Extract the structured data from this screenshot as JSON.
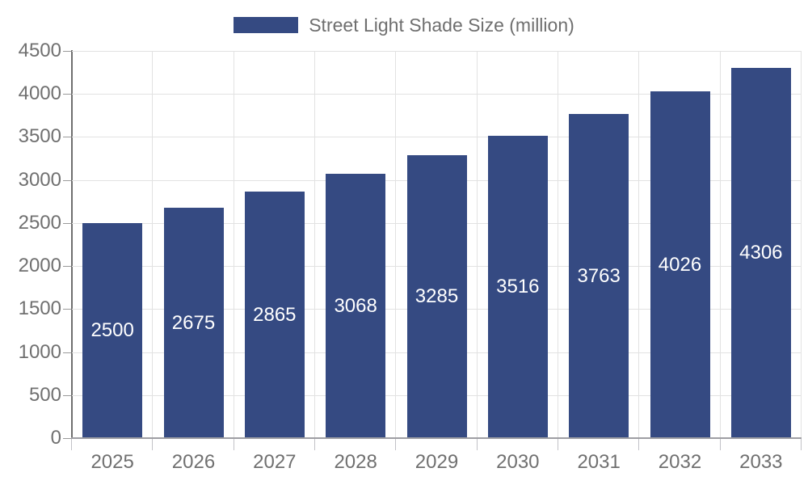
{
  "chart_data": {
    "type": "bar",
    "title": "Street Light Shade Size (million)",
    "categories": [
      "2025",
      "2026",
      "2027",
      "2028",
      "2029",
      "2030",
      "2031",
      "2032",
      "2033"
    ],
    "values": [
      2500,
      2675,
      2865,
      3068,
      3285,
      3516,
      3763,
      4026,
      4306
    ],
    "xlabel": "",
    "ylabel": "",
    "ylim": [
      0,
      4500
    ],
    "y_ticks": [
      0,
      500,
      1000,
      1500,
      2000,
      2500,
      3000,
      3500,
      4000,
      4500
    ],
    "grid": "horizontal-and-vertical",
    "legend_position": "top-center",
    "bar_color": "#354a82",
    "bar_label_color": "#ffffff",
    "axis_text_color": "#707070",
    "gridline_color": "#e2e2e2"
  },
  "legend": {
    "label": "Street Light Shade Size (million)",
    "swatch_color": "#354a82"
  }
}
